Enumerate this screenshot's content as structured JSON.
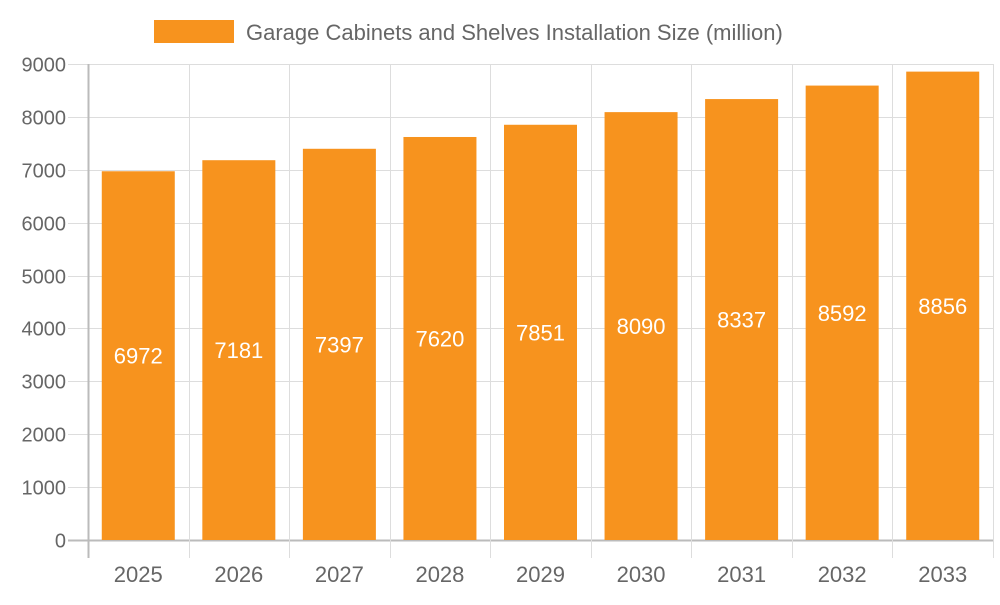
{
  "chart_data": {
    "type": "bar",
    "categories": [
      "2025",
      "2026",
      "2027",
      "2028",
      "2029",
      "2030",
      "2031",
      "2032",
      "2033"
    ],
    "series": [
      {
        "name": "Garage Cabinets and Shelves Installation Size (million)",
        "values": [
          6972,
          7181,
          7397,
          7620,
          7851,
          8090,
          8337,
          8592,
          8856
        ]
      }
    ],
    "ylim": [
      0,
      9000
    ],
    "yticks": [
      0,
      1000,
      2000,
      3000,
      4000,
      5000,
      6000,
      7000,
      8000,
      9000
    ],
    "grid": true,
    "legend": "top",
    "data_labels": true,
    "colors": {
      "bar": "#f7931e",
      "text": "#666666",
      "grid": "#dddddd",
      "axis": "#bbbbbb",
      "label": "#ffffff"
    }
  }
}
